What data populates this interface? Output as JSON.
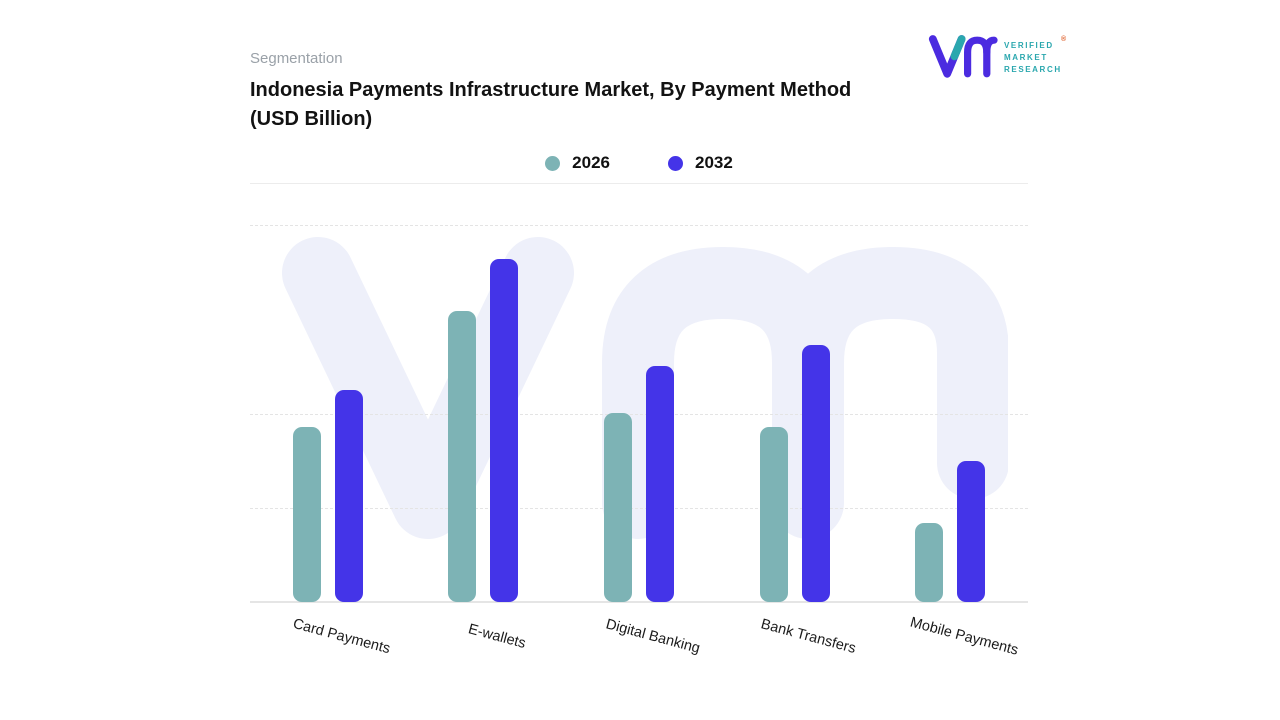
{
  "header": {
    "eyebrow": "Segmentation",
    "title": "Indonesia Payments Infrastructure Market, By Payment Method (USD Billion)"
  },
  "logo": {
    "brand": "VMR",
    "lines": [
      "VERIFIED",
      "MARKET",
      "RESEARCH"
    ],
    "registered_mark": "®",
    "purple": "#4b2be0",
    "teal": "#2aa7ae"
  },
  "chart_data": {
    "type": "bar",
    "title": "Indonesia Payments Infrastructure Market, By Payment Method (USD Billion)",
    "categories": [
      "Card Payments",
      "E-wallets",
      "Digital Banking",
      "Bank Transfers",
      "Mobile Payments"
    ],
    "series": [
      {
        "name": "2026",
        "color": "#7db3b5",
        "values": [
          51,
          85,
          55,
          51,
          23
        ]
      },
      {
        "name": "2032",
        "color": "#4434e8",
        "values": [
          62,
          100,
          69,
          75,
          41
        ]
      }
    ],
    "xlabel": "",
    "ylabel": "",
    "ylim": [
      0,
      110
    ],
    "grid": "dashed-horizontal",
    "legend_position": "top-center",
    "value_axis_labels_visible": false,
    "note": "No numeric axis shown in source; values are relative units estimated from bar heights"
  }
}
